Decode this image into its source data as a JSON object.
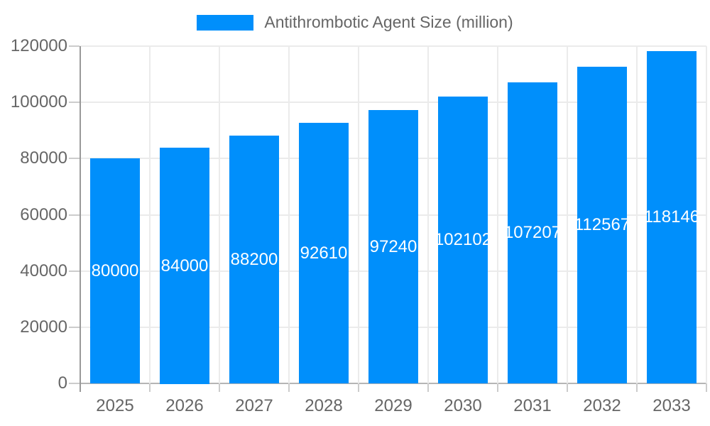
{
  "chart_data": {
    "type": "bar",
    "title": "",
    "categories": [
      "2025",
      "2026",
      "2027",
      "2028",
      "2029",
      "2030",
      "2031",
      "2032",
      "2033"
    ],
    "series": [
      {
        "name": "Antithrombotic Agent Size (million)",
        "values": [
          80000,
          84000,
          88200,
          92610,
          97240,
          102102,
          107207,
          112567,
          118146
        ]
      }
    ],
    "bar_value_labels": [
      "80000",
      "84000",
      "88200",
      "92610",
      "97240",
      "102102",
      "107207",
      "112567",
      "118146"
    ],
    "xlabel": "",
    "ylabel": "",
    "ylim": [
      0,
      120000
    ],
    "yticks": [
      0,
      20000,
      40000,
      60000,
      80000,
      100000,
      120000
    ],
    "ytick_labels": [
      "0",
      "20000",
      "40000",
      "60000",
      "80000",
      "100000",
      "120000"
    ],
    "grid": true,
    "legend_position": "top-center",
    "colors": {
      "bar": "#008FFB",
      "grid_line": "#ebebeb",
      "zero_line": "#b5b5b5",
      "axis_line": "#999999",
      "tick": "#cccccc",
      "axis_text": "#666666",
      "legend_text": "#666666",
      "bar_label_text": "#ffffff",
      "background": "#ffffff"
    }
  }
}
